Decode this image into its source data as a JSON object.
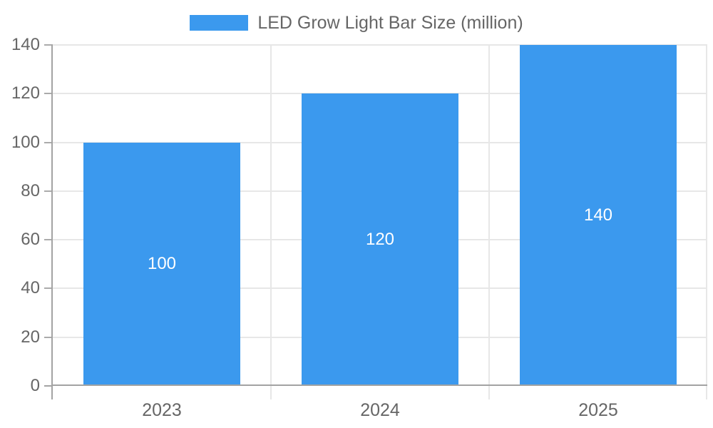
{
  "chart_data": {
    "type": "bar",
    "title": "LED Grow Light Bar Size (million)",
    "categories": [
      "2023",
      "2024",
      "2025"
    ],
    "series": [
      {
        "name": "LED Grow Light Bar Size (million)",
        "values": [
          100,
          120,
          140
        ]
      }
    ],
    "values": [
      100,
      120,
      140
    ],
    "data_labels": [
      "100",
      "120",
      "140"
    ],
    "xlabel": "",
    "ylabel": "",
    "ylim": [
      0,
      140
    ],
    "yticks": [
      0,
      20,
      40,
      60,
      80,
      100,
      120,
      140
    ],
    "grid": true,
    "legend_position": "top-center",
    "colors": {
      "bar": "#3b99ee",
      "bar_label_text": "#ffffff",
      "axis_text": "#666666",
      "axis_line": "#a3a3a3",
      "gridline": "#e7e7e7",
      "tick_mark": "#ababab"
    }
  },
  "legend": {
    "label": "LED Grow Light Bar Size (million)",
    "swatch_color": "#3b99ee"
  }
}
